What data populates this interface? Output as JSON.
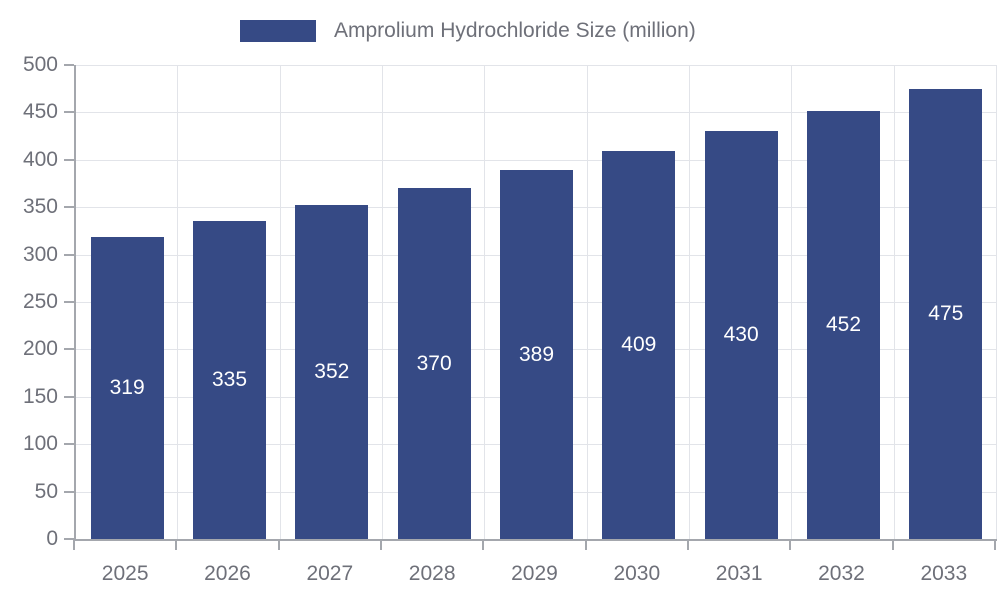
{
  "legend": {
    "label": "Amprolium Hydrochloride Size (million)"
  },
  "chart_data": {
    "type": "bar",
    "title": "Amprolium Hydrochloride Size (million)",
    "categories": [
      "2025",
      "2026",
      "2027",
      "2028",
      "2029",
      "2030",
      "2031",
      "2032",
      "2033"
    ],
    "values": [
      319,
      335,
      352,
      370,
      389,
      409,
      430,
      452,
      475
    ],
    "series": [
      {
        "name": "Amprolium Hydrochloride Size (million)",
        "values": [
          319,
          335,
          352,
          370,
          389,
          409,
          430,
          452,
          475
        ]
      }
    ],
    "xlabel": "",
    "ylabel": "",
    "ylim": [
      0,
      500
    ],
    "yticks": [
      0,
      50,
      100,
      150,
      200,
      250,
      300,
      350,
      400,
      450,
      500
    ],
    "grid": true,
    "legend_position": "top-center",
    "bar_label_position": "inside-middle",
    "colors": {
      "bar": "#364a85",
      "bar_label": "#ffffff",
      "axis_text": "#6e7079",
      "legend_text": "#6e7079",
      "gridline": "#e2e4e9",
      "axis_line": "#a4a7ad",
      "background": "#ffffff"
    }
  }
}
